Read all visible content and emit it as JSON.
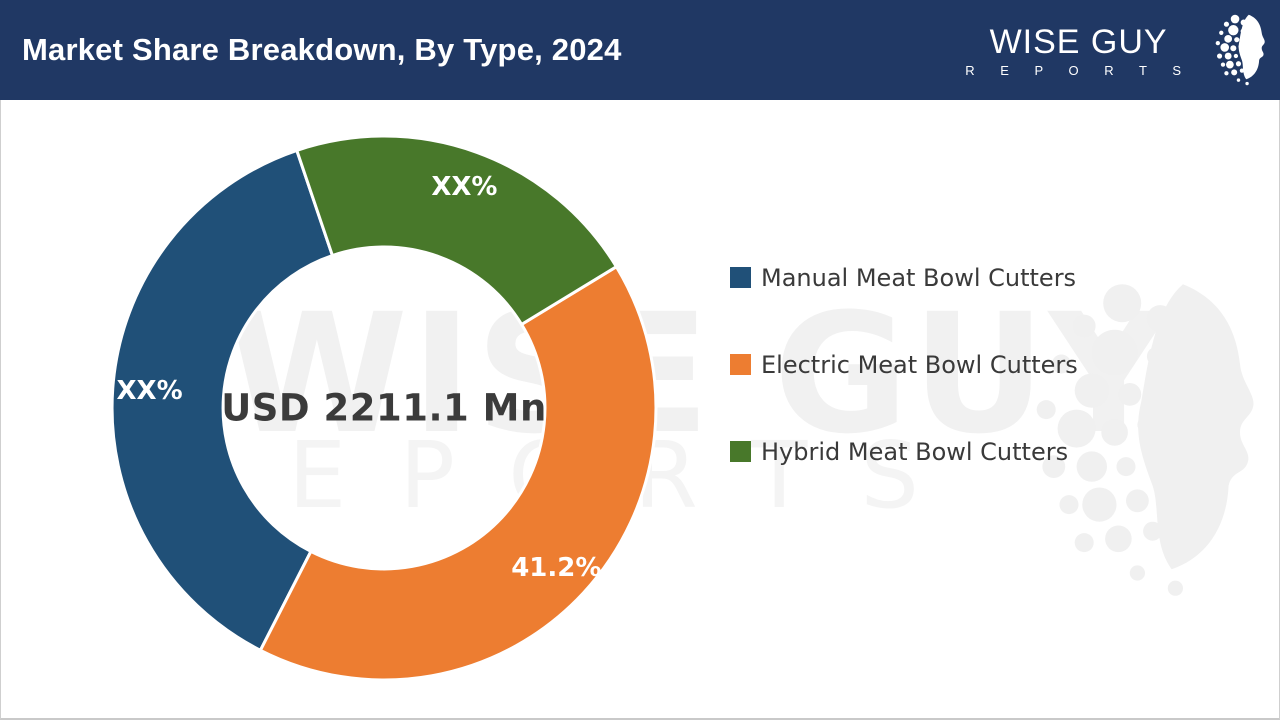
{
  "header": {
    "title": "Market Share Breakdown, By Type, 2024",
    "brand": {
      "line1": "WISE GUY",
      "line2": "R E P O R T S"
    }
  },
  "watermark": {
    "line1": "WISE GUY",
    "line2": "R E P O R T S"
  },
  "chart_data": {
    "type": "pie",
    "subtype": "donut",
    "title": "Market Share Breakdown, By Type, 2024",
    "center_label": "USD 2211.1 Mn",
    "legend_position": "right",
    "start_angle_deg": -18.7,
    "direction": "counterclockwise",
    "segments": [
      {
        "label": "Manual Meat Bowl Cutters",
        "value": 37.3,
        "display_label": "XX%",
        "color": "#205078"
      },
      {
        "label": "Electric Meat Bowl Cutters",
        "value": 41.2,
        "display_label": "41.2%",
        "color": "#ED7D31"
      },
      {
        "label": "Hybrid Meat Bowl Cutters",
        "value": 21.5,
        "display_label": "XX%",
        "color": "#48782A"
      }
    ]
  },
  "colors": {
    "header_bg": "#203864",
    "center_text": "#3B3B3B",
    "legend_text": "#3A3A3A",
    "watermark": "#F1F1F1",
    "page_border": "#C9C9C9"
  }
}
